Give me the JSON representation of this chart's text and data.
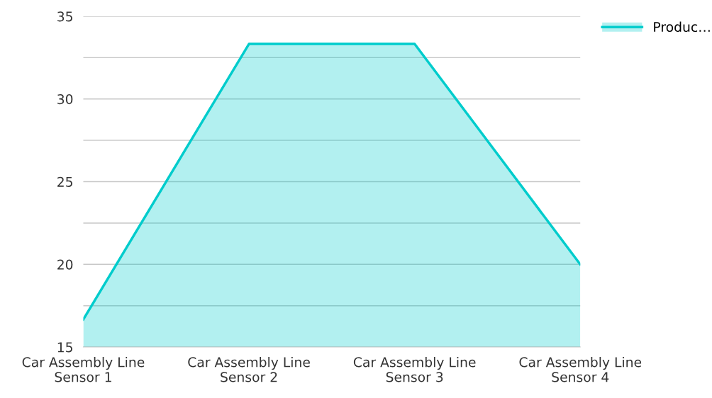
{
  "chart_data": {
    "type": "area",
    "categories": [
      "Car Assembly Line\nSensor 1",
      "Car Assembly Line\nSensor 2",
      "Car Assembly Line\nSensor 3",
      "Car Assembly Line\nSensor 4"
    ],
    "series": [
      {
        "name": "Produc…",
        "color": "#00cccc",
        "values": [
          16.67,
          33.33,
          33.33,
          20.0
        ]
      }
    ],
    "ylim": [
      15,
      35
    ],
    "yticks": [
      15,
      {
        "value": 17.5,
        "label": null
      },
      20,
      {
        "value": 22.5,
        "label": null
      },
      25,
      {
        "value": 27.5,
        "label": null
      },
      30,
      {
        "value": 32.5,
        "label": null
      },
      35
    ],
    "grid": "y",
    "legend": "top right",
    "line_style": "solid",
    "marker": "none"
  }
}
